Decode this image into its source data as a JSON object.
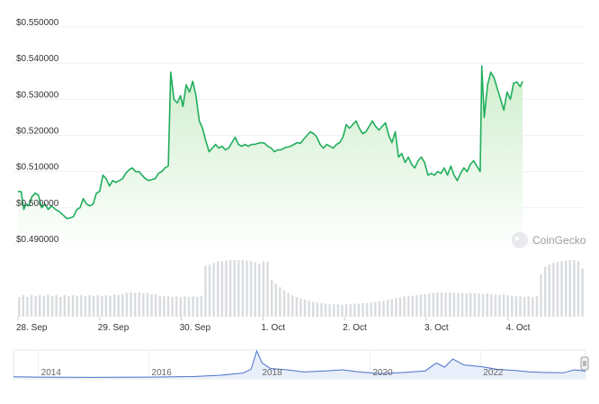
{
  "watermark": "CoinGecko",
  "colors": {
    "line": "#1fae5b",
    "area_top": "#cfeecd",
    "area_bottom": "#ffffff",
    "volume_bar": "#d9dcdf",
    "grid": "#eef0f2",
    "nav_line": "#4a72c9",
    "nav_fill": "#e9eefb"
  },
  "chart_data": {
    "type": "line",
    "title": "",
    "xlabel": "",
    "ylabel": "",
    "y_tick_labels": [
      "$0.550000",
      "$0.540000",
      "$0.530000",
      "$0.520000",
      "$0.510000",
      "$0.500000",
      "$0.490000"
    ],
    "y_ticks": [
      0.55,
      0.54,
      0.53,
      0.52,
      0.51,
      0.5,
      0.49
    ],
    "ylim": [
      0.4875,
      0.5535
    ],
    "x_tick_labels": [
      "28. Sep",
      "29. Sep",
      "30. Sep",
      "1. Oct",
      "2. Oct",
      "3. Oct",
      "4. Oct"
    ],
    "x_tick_days": [
      0,
      1,
      2,
      3,
      4,
      5,
      6
    ],
    "xlim_days": [
      0,
      6.95
    ],
    "grid": true,
    "series": [
      {
        "values": [
          [
            0.0,
            0.5045
          ],
          [
            0.04,
            0.5044
          ],
          [
            0.07,
            0.4995
          ],
          [
            0.1,
            0.501
          ],
          [
            0.13,
            0.5005
          ],
          [
            0.17,
            0.503
          ],
          [
            0.21,
            0.504
          ],
          [
            0.25,
            0.5035
          ],
          [
            0.29,
            0.5
          ],
          [
            0.33,
            0.501
          ],
          [
            0.37,
            0.4995
          ],
          [
            0.41,
            0.5005
          ],
          [
            0.46,
            0.4995
          ],
          [
            0.5,
            0.499
          ],
          [
            0.55,
            0.498
          ],
          [
            0.6,
            0.497
          ],
          [
            0.64,
            0.4972
          ],
          [
            0.68,
            0.4975
          ],
          [
            0.72,
            0.4995
          ],
          [
            0.76,
            0.5
          ],
          [
            0.8,
            0.5025
          ],
          [
            0.84,
            0.501
          ],
          [
            0.88,
            0.5005
          ],
          [
            0.92,
            0.501
          ],
          [
            0.96,
            0.504
          ],
          [
            1.0,
            0.5045
          ],
          [
            1.04,
            0.509
          ],
          [
            1.08,
            0.508
          ],
          [
            1.12,
            0.506
          ],
          [
            1.16,
            0.5075
          ],
          [
            1.2,
            0.507
          ],
          [
            1.24,
            0.5075
          ],
          [
            1.28,
            0.508
          ],
          [
            1.32,
            0.5095
          ],
          [
            1.36,
            0.5105
          ],
          [
            1.4,
            0.511
          ],
          [
            1.44,
            0.51
          ],
          [
            1.48,
            0.51
          ],
          [
            1.52,
            0.509
          ],
          [
            1.56,
            0.508
          ],
          [
            1.6,
            0.5075
          ],
          [
            1.64,
            0.5078
          ],
          [
            1.68,
            0.508
          ],
          [
            1.72,
            0.5095
          ],
          [
            1.76,
            0.51
          ],
          [
            1.8,
            0.511
          ],
          [
            1.84,
            0.5115
          ],
          [
            1.87,
            0.5375
          ],
          [
            1.91,
            0.53
          ],
          [
            1.95,
            0.529
          ],
          [
            1.99,
            0.531
          ],
          [
            2.02,
            0.528
          ],
          [
            2.06,
            0.534
          ],
          [
            2.1,
            0.532
          ],
          [
            2.14,
            0.535
          ],
          [
            2.18,
            0.531
          ],
          [
            2.22,
            0.524
          ],
          [
            2.26,
            0.522
          ],
          [
            2.3,
            0.5185
          ],
          [
            2.34,
            0.5155
          ],
          [
            2.38,
            0.5165
          ],
          [
            2.42,
            0.5175
          ],
          [
            2.46,
            0.5165
          ],
          [
            2.5,
            0.517
          ],
          [
            2.54,
            0.516
          ],
          [
            2.58,
            0.5165
          ],
          [
            2.62,
            0.518
          ],
          [
            2.66,
            0.5195
          ],
          [
            2.7,
            0.5175
          ],
          [
            2.74,
            0.517
          ],
          [
            2.78,
            0.5175
          ],
          [
            2.82,
            0.517
          ],
          [
            2.86,
            0.5175
          ],
          [
            2.9,
            0.5175
          ],
          [
            2.94,
            0.5178
          ],
          [
            2.98,
            0.518
          ],
          [
            3.02,
            0.5178
          ],
          [
            3.06,
            0.517
          ],
          [
            3.1,
            0.5165
          ],
          [
            3.14,
            0.5155
          ],
          [
            3.18,
            0.516
          ],
          [
            3.22,
            0.516
          ],
          [
            3.26,
            0.5165
          ],
          [
            3.3,
            0.5168
          ],
          [
            3.34,
            0.517
          ],
          [
            3.38,
            0.5175
          ],
          [
            3.42,
            0.518
          ],
          [
            3.46,
            0.5178
          ],
          [
            3.5,
            0.519
          ],
          [
            3.54,
            0.52
          ],
          [
            3.58,
            0.521
          ],
          [
            3.62,
            0.5205
          ],
          [
            3.66,
            0.5195
          ],
          [
            3.7,
            0.5175
          ],
          [
            3.74,
            0.5165
          ],
          [
            3.78,
            0.5175
          ],
          [
            3.82,
            0.517
          ],
          [
            3.86,
            0.5165
          ],
          [
            3.9,
            0.5175
          ],
          [
            3.94,
            0.518
          ],
          [
            3.98,
            0.5195
          ],
          [
            4.02,
            0.523
          ],
          [
            4.06,
            0.522
          ],
          [
            4.1,
            0.523
          ],
          [
            4.14,
            0.524
          ],
          [
            4.18,
            0.522
          ],
          [
            4.22,
            0.5205
          ],
          [
            4.26,
            0.521
          ],
          [
            4.3,
            0.5225
          ],
          [
            4.34,
            0.524
          ],
          [
            4.38,
            0.5225
          ],
          [
            4.42,
            0.5215
          ],
          [
            4.46,
            0.5225
          ],
          [
            4.5,
            0.5235
          ],
          [
            4.54,
            0.52
          ],
          [
            4.58,
            0.518
          ],
          [
            4.62,
            0.521
          ],
          [
            4.66,
            0.514
          ],
          [
            4.7,
            0.515
          ],
          [
            4.74,
            0.5125
          ],
          [
            4.78,
            0.514
          ],
          [
            4.82,
            0.512
          ],
          [
            4.86,
            0.511
          ],
          [
            4.9,
            0.513
          ],
          [
            4.94,
            0.514
          ],
          [
            4.98,
            0.5125
          ],
          [
            5.02,
            0.509
          ],
          [
            5.06,
            0.5095
          ],
          [
            5.1,
            0.509
          ],
          [
            5.14,
            0.51
          ],
          [
            5.18,
            0.5095
          ],
          [
            5.22,
            0.511
          ],
          [
            5.26,
            0.509
          ],
          [
            5.3,
            0.5115
          ],
          [
            5.34,
            0.509
          ],
          [
            5.38,
            0.5075
          ],
          [
            5.42,
            0.5095
          ],
          [
            5.46,
            0.511
          ],
          [
            5.5,
            0.51
          ],
          [
            5.54,
            0.512
          ],
          [
            5.58,
            0.513
          ],
          [
            5.62,
            0.5115
          ],
          [
            5.66,
            0.51
          ],
          [
            5.68,
            0.5392
          ],
          [
            5.71,
            0.525
          ],
          [
            5.75,
            0.534
          ],
          [
            5.79,
            0.5375
          ],
          [
            5.83,
            0.536
          ],
          [
            5.87,
            0.533
          ],
          [
            5.91,
            0.53
          ],
          [
            5.95,
            0.527
          ],
          [
            5.99,
            0.532
          ],
          [
            6.03,
            0.53
          ],
          [
            6.07,
            0.5345
          ],
          [
            6.11,
            0.5348
          ],
          [
            6.15,
            0.5335
          ],
          [
            6.18,
            0.535
          ]
        ]
      }
    ],
    "volume": {
      "relative_heights": [
        0.35,
        0.38,
        0.35,
        0.38,
        0.36,
        0.38,
        0.37,
        0.39,
        0.36,
        0.38,
        0.35,
        0.38,
        0.36,
        0.38,
        0.37,
        0.38,
        0.36,
        0.38,
        0.37,
        0.38,
        0.36,
        0.38,
        0.37,
        0.39,
        0.38,
        0.4,
        0.42,
        0.43,
        0.42,
        0.43,
        0.41,
        0.42,
        0.4,
        0.39,
        0.37,
        0.36,
        0.36,
        0.35,
        0.36,
        0.35,
        0.36,
        0.35,
        0.36,
        0.35,
        0.37,
        0.9,
        0.92,
        0.95,
        0.97,
        0.98,
        0.99,
        1.0,
        1.0,
        1.0,
        1.0,
        0.99,
        0.98,
        0.96,
        0.94,
        0.98,
        0.97,
        0.65,
        0.58,
        0.52,
        0.47,
        0.42,
        0.38,
        0.35,
        0.32,
        0.3,
        0.28,
        0.26,
        0.25,
        0.24,
        0.23,
        0.22,
        0.22,
        0.22,
        0.21,
        0.22,
        0.22,
        0.23,
        0.23,
        0.24,
        0.24,
        0.25,
        0.26,
        0.27,
        0.28,
        0.3,
        0.31,
        0.33,
        0.34,
        0.36,
        0.36,
        0.37,
        0.38,
        0.39,
        0.4,
        0.41,
        0.42,
        0.43,
        0.43,
        0.42,
        0.43,
        0.42,
        0.41,
        0.42,
        0.41,
        0.42,
        0.41,
        0.41,
        0.4,
        0.41,
        0.4,
        0.39,
        0.38,
        0.39,
        0.38,
        0.37,
        0.36,
        0.36,
        0.35,
        0.36,
        0.35,
        0.36,
        0.75,
        0.88,
        0.92,
        0.95,
        0.97,
        0.98,
        0.99,
        1.0,
        1.0,
        0.98,
        0.85
      ]
    },
    "navigator": {
      "x_tick_labels": [
        "2014",
        "2016",
        "2018",
        "2020",
        "2022"
      ],
      "x_tick_years": [
        2014,
        2016,
        2018,
        2020,
        2022
      ],
      "xlim_years": [
        2013.55,
        2023.9
      ],
      "series_years": [
        [
          2013.55,
          0.04
        ],
        [
          2014.0,
          0.03
        ],
        [
          2015.0,
          0.02
        ],
        [
          2016.0,
          0.03
        ],
        [
          2016.8,
          0.05
        ],
        [
          2017.3,
          0.1
        ],
        [
          2017.7,
          0.18
        ],
        [
          2017.85,
          0.32
        ],
        [
          2017.95,
          1.0
        ],
        [
          2018.05,
          0.55
        ],
        [
          2018.2,
          0.35
        ],
        [
          2018.5,
          0.3
        ],
        [
          2018.8,
          0.22
        ],
        [
          2019.2,
          0.26
        ],
        [
          2019.5,
          0.3
        ],
        [
          2019.8,
          0.22
        ],
        [
          2020.2,
          0.16
        ],
        [
          2020.6,
          0.2
        ],
        [
          2021.0,
          0.26
        ],
        [
          2021.2,
          0.55
        ],
        [
          2021.35,
          0.4
        ],
        [
          2021.5,
          0.7
        ],
        [
          2021.7,
          0.48
        ],
        [
          2022.0,
          0.42
        ],
        [
          2022.3,
          0.32
        ],
        [
          2022.6,
          0.28
        ],
        [
          2022.9,
          0.22
        ],
        [
          2023.2,
          0.2
        ],
        [
          2023.5,
          0.19
        ],
        [
          2023.7,
          0.3
        ],
        [
          2023.9,
          0.25
        ]
      ]
    }
  }
}
